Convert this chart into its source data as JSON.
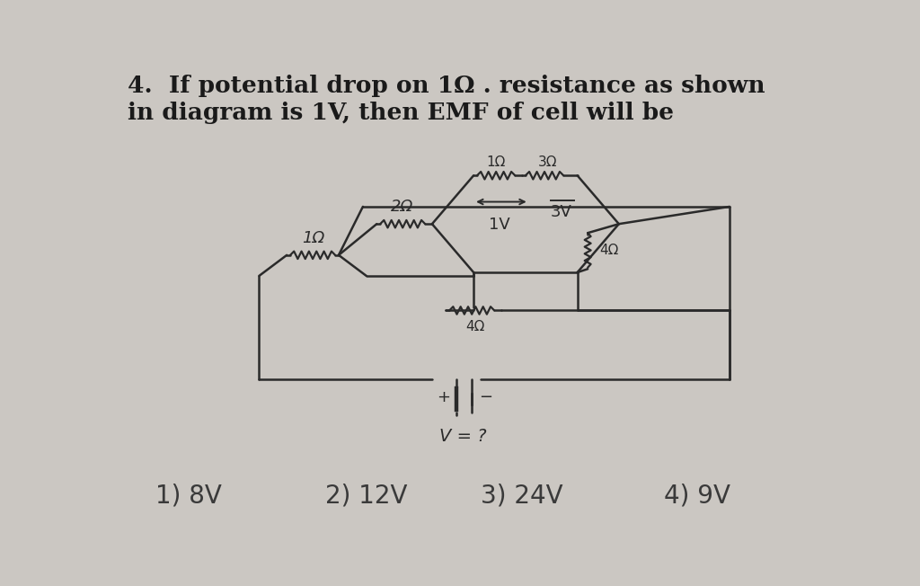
{
  "bg_color": "#cbc7c2",
  "title_line1": "4.  If potential drop on 1Ω . resistance as shown",
  "title_line2": "in diagram is 1V, then EMF of cell will be",
  "title_fontsize": 19,
  "title_color": "#1a1a1a",
  "options": [
    "1) 8V",
    "2) 12V",
    "3) 24V",
    "4) 9V"
  ],
  "options_fontsize": 20,
  "options_color": "#3a3a3a",
  "circuit_color": "#2a2a2a",
  "label_1ohm_left": "1Ω",
  "label_2ohm": "2Ω",
  "label_1ohm_top": "1Ω",
  "label_3ohm": "3Ω",
  "label_4ohm_mid": "4Ω",
  "label_4ohm_bot": "4Ω",
  "label_1V": "1V",
  "label_3V": "3V",
  "label_Veq": "V = ?",
  "label_plus": "+",
  "label_minus": "−"
}
